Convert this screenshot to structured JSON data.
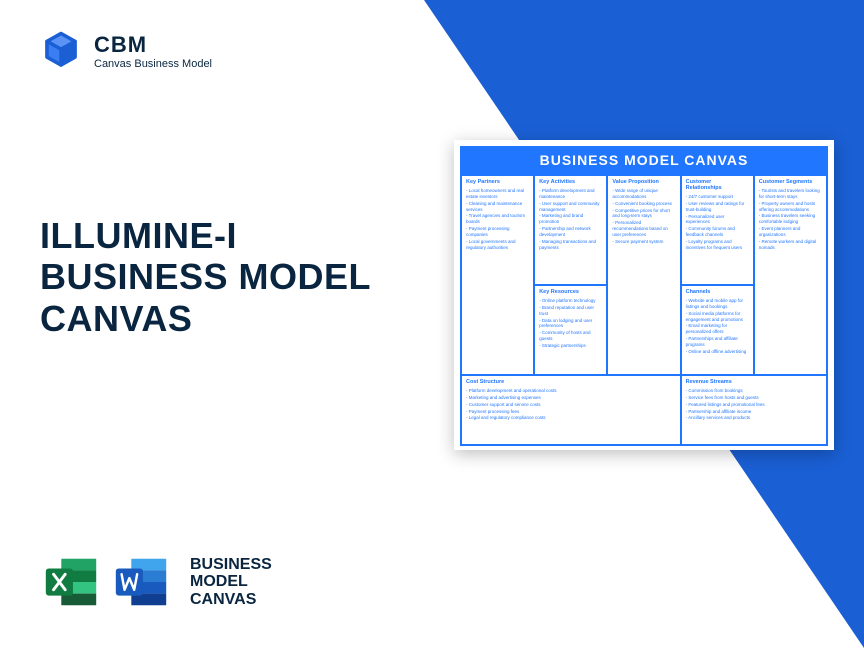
{
  "logo": {
    "title": "CBM",
    "subtitle": "Canvas Business Model"
  },
  "heading": {
    "line1": "ILLUMINE-I",
    "line2": "BUSINESS MODEL",
    "line3": "CANVAS"
  },
  "bmc_label": {
    "line1": "BUSINESS",
    "line2": "MODEL",
    "line3": "CANVAS"
  },
  "canvas": {
    "title": "BUSINESS MODEL CANVAS",
    "colors": {
      "accent": "#2176ff",
      "text": "#2176ff",
      "bg": "#ffffff"
    },
    "sections": {
      "key_partners": {
        "title": "Key Partners",
        "items": [
          "Local homeowners and real estate investors",
          "Cleaning and maintenance services",
          "Travel agencies and tourism boards",
          "Payment processing companies",
          "Local governments and regulatory authorities"
        ]
      },
      "key_activities": {
        "title": "Key Activities",
        "items": [
          "Platform development and maintenance",
          "User support and community management",
          "Marketing and brand promotion",
          "Partnership and network development",
          "Managing transactions and payments"
        ]
      },
      "key_resources": {
        "title": "Key Resources",
        "items": [
          "Online platform technology",
          "Brand reputation and user trust",
          "Data on lodging and user preferences",
          "Community of hosts and guests",
          "Strategic partnerships"
        ]
      },
      "value_proposition": {
        "title": "Value Proposition",
        "items": [
          "Wide range of unique accommodations",
          "Convenient booking process",
          "Competitive prices for short and long-term stays",
          "Personalized recommendations based on user preferences",
          "Secure payment system"
        ]
      },
      "customer_relationships": {
        "title": "Customer Relationships",
        "items": [
          "24/7 customer support",
          "User reviews and ratings for trust-building",
          "Personalized user experiences",
          "Community forums and feedback channels",
          "Loyalty programs and incentives for frequent users"
        ]
      },
      "channels": {
        "title": "Channels",
        "items": [
          "Website and mobile app for listings and bookings",
          "Social media platforms for engagement and promotions",
          "Email marketing for personalized offers",
          "Partnerships and affiliate programs",
          "Online and offline advertising"
        ]
      },
      "customer_segments": {
        "title": "Customer Segments",
        "items": [
          "Tourists and travelers looking for short-term stays",
          "Property owners and hosts offering accommodations",
          "Business travelers seeking comfortable lodging",
          "Event planners and organizations",
          "Remote workers and digital nomads"
        ]
      },
      "cost_structure": {
        "title": "Cost Structure",
        "items": [
          "Platform development and operational costs",
          "Marketing and advertising expenses",
          "Customer support and service costs",
          "Payment processing fees",
          "Legal and regulatory compliance costs"
        ]
      },
      "revenue_streams": {
        "title": "Revenue Streams",
        "items": [
          "Commission from bookings",
          "Service fees from hosts and guests",
          "Featured listings and promotional fees",
          "Partnership and affiliate income",
          "Ancillary services and products"
        ]
      }
    }
  }
}
